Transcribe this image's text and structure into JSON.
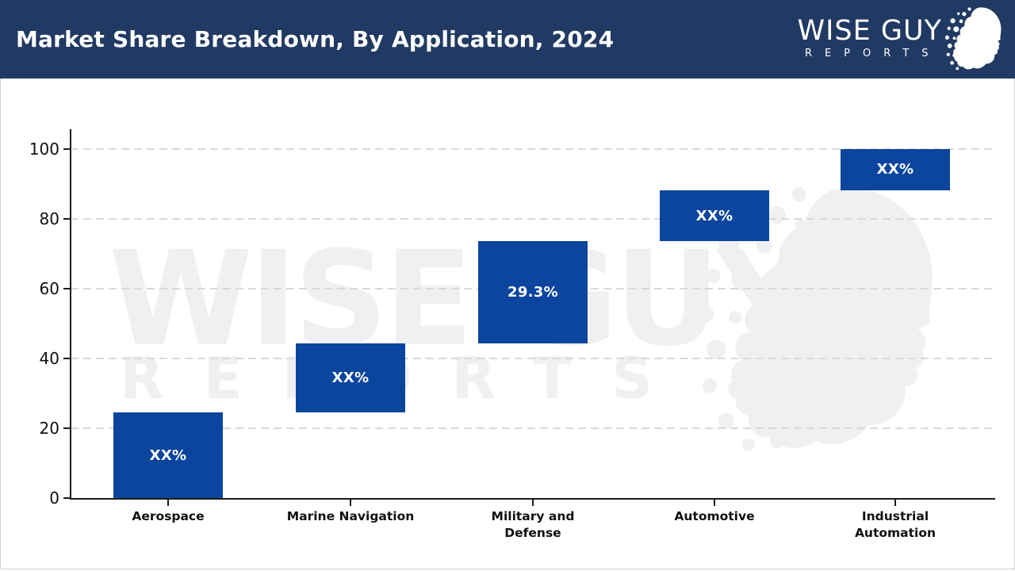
{
  "header": {
    "title": "Market Share Breakdown, By Application, 2024",
    "logo": {
      "wordmark": "WISE GUY",
      "subtext": "REPORTS"
    }
  },
  "watermark": {
    "line1": "WISE GUY",
    "line2": "REPORTS"
  },
  "colors": {
    "header_bg": "#213a63",
    "bar": "#0b459e",
    "bar_label": "#ffffff",
    "grid": "#d9d9d9",
    "axis": "#1c1c1c",
    "watermark": "#f0f0f2",
    "page_border": "#c9cdd4"
  },
  "chart_data": {
    "type": "bar",
    "variant": "floating-waterfall",
    "title": "Market Share Breakdown, By Application, 2024",
    "categories": [
      "Aerospace",
      "Marine Navigation",
      "Military and\nDefense",
      "Automotive",
      "Industrial\nAutomation"
    ],
    "series": [
      {
        "name": "Market share (%)",
        "from": [
          0,
          24.5,
          44.3,
          73.6,
          88.2
        ],
        "to": [
          24.5,
          44.3,
          73.6,
          88.2,
          100
        ],
        "labels": [
          "XX%",
          "XX%",
          "29.3%",
          "XX%",
          "XX%"
        ]
      }
    ],
    "yticks": [
      0,
      20,
      40,
      60,
      80,
      100
    ],
    "ylim": [
      0,
      105.5
    ],
    "xlabel": "",
    "ylabel": "",
    "grid": {
      "axis": "y",
      "style": "dashed"
    },
    "legend": null
  }
}
